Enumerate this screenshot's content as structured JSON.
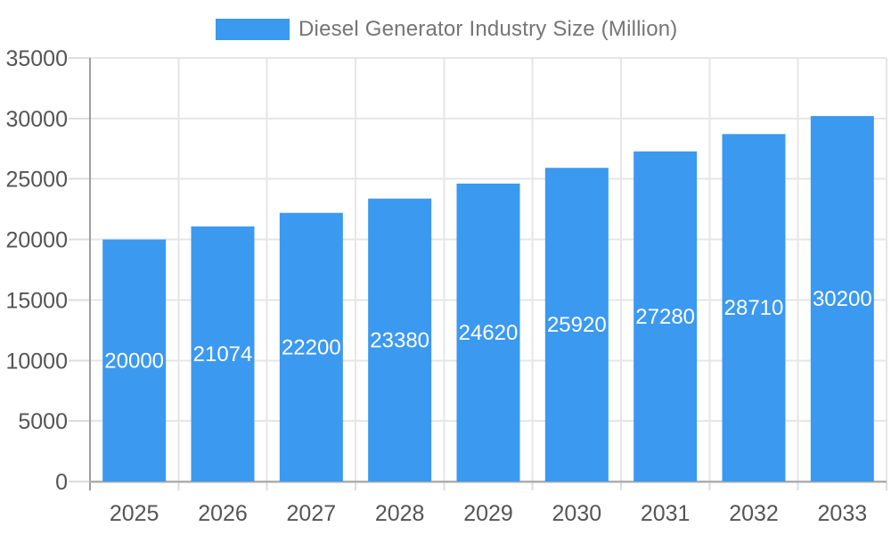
{
  "legend": {
    "series_label": "Diesel Generator Industry Size (Million)"
  },
  "chart_data": {
    "type": "bar",
    "title": "Diesel Generator Industry Size (Million)",
    "categories": [
      "2025",
      "2026",
      "2027",
      "2028",
      "2029",
      "2030",
      "2031",
      "2032",
      "2033"
    ],
    "series": [
      {
        "name": "Diesel Generator Industry Size (Million)",
        "values": [
          20000,
          21074,
          22200,
          23380,
          24620,
          25920,
          27280,
          28710,
          30200
        ]
      }
    ],
    "value_labels": [
      "20000",
      "21074",
      "22200",
      "23380",
      "24620",
      "25920",
      "27280",
      "28710",
      "30200"
    ],
    "y_tick_labels": [
      "0",
      "5000",
      "10000",
      "15000",
      "20000",
      "25000",
      "30000",
      "35000"
    ],
    "xlabel": "",
    "ylabel": "",
    "ylim": [
      0,
      35000
    ],
    "ytick_step": 5000,
    "grid": true,
    "legend_position": "top-center",
    "colors": {
      "bar": "#3B99F0",
      "value_label": "#FFFFFF",
      "axis_label": "#555555",
      "legend_text": "#757575",
      "gridline": "#E6E6E6",
      "tick": "#DDDDDD",
      "axis_line": "#9E9E9E",
      "baseline": "#ADADAD",
      "background": "#FFFFFF"
    }
  }
}
